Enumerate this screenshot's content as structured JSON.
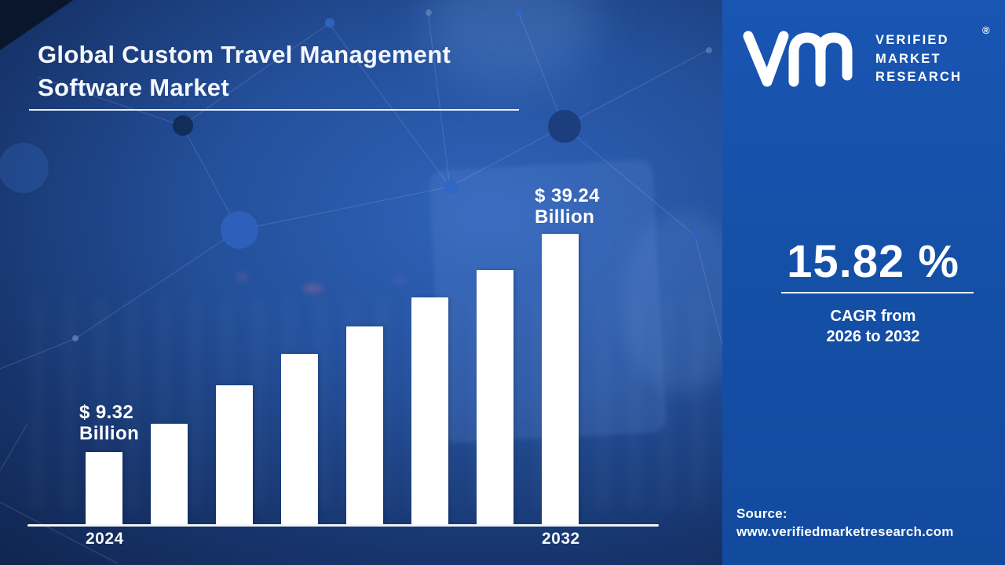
{
  "header": {
    "title_line1": "Global Custom Travel Management",
    "title_line2": "Software Market"
  },
  "brand": {
    "monogram": "vmr-monogram",
    "line1": "VERIFIED",
    "line2": "MARKET",
    "line3": "RESEARCH",
    "registered": "®"
  },
  "panel": {
    "bg_color": "#1550a8",
    "cagr_value": "15.82 %",
    "cagr_line1": "CAGR from",
    "cagr_line2": "2026 to 2032",
    "source_label": "Source:",
    "source_url": "www.verifiedmarketresearch.com"
  },
  "chart_data": {
    "type": "bar",
    "title": "Global Custom Travel Management Software Market",
    "unit": "USD Billion",
    "categories": [
      "2024",
      "",
      "",
      "",
      "",
      "",
      "",
      "2032"
    ],
    "values": [
      9.32,
      13.2,
      18.5,
      22.8,
      26.5,
      30.5,
      34.3,
      39.24
    ],
    "values_estimated": true,
    "labeled_values": {
      "first": 9.32,
      "last": 39.24
    },
    "x_tick_labels": [
      "2024",
      "2032"
    ],
    "first_bar_label": {
      "line1": "$ 9.32",
      "line2": "Billion"
    },
    "last_bar_label": {
      "line1": "$ 39.24",
      "line2": "Billion"
    },
    "bar_color": "#ffffff",
    "axis_color": "#f2f5fa",
    "ylim": [
      0,
      42
    ],
    "grid": false,
    "legend": false
  }
}
